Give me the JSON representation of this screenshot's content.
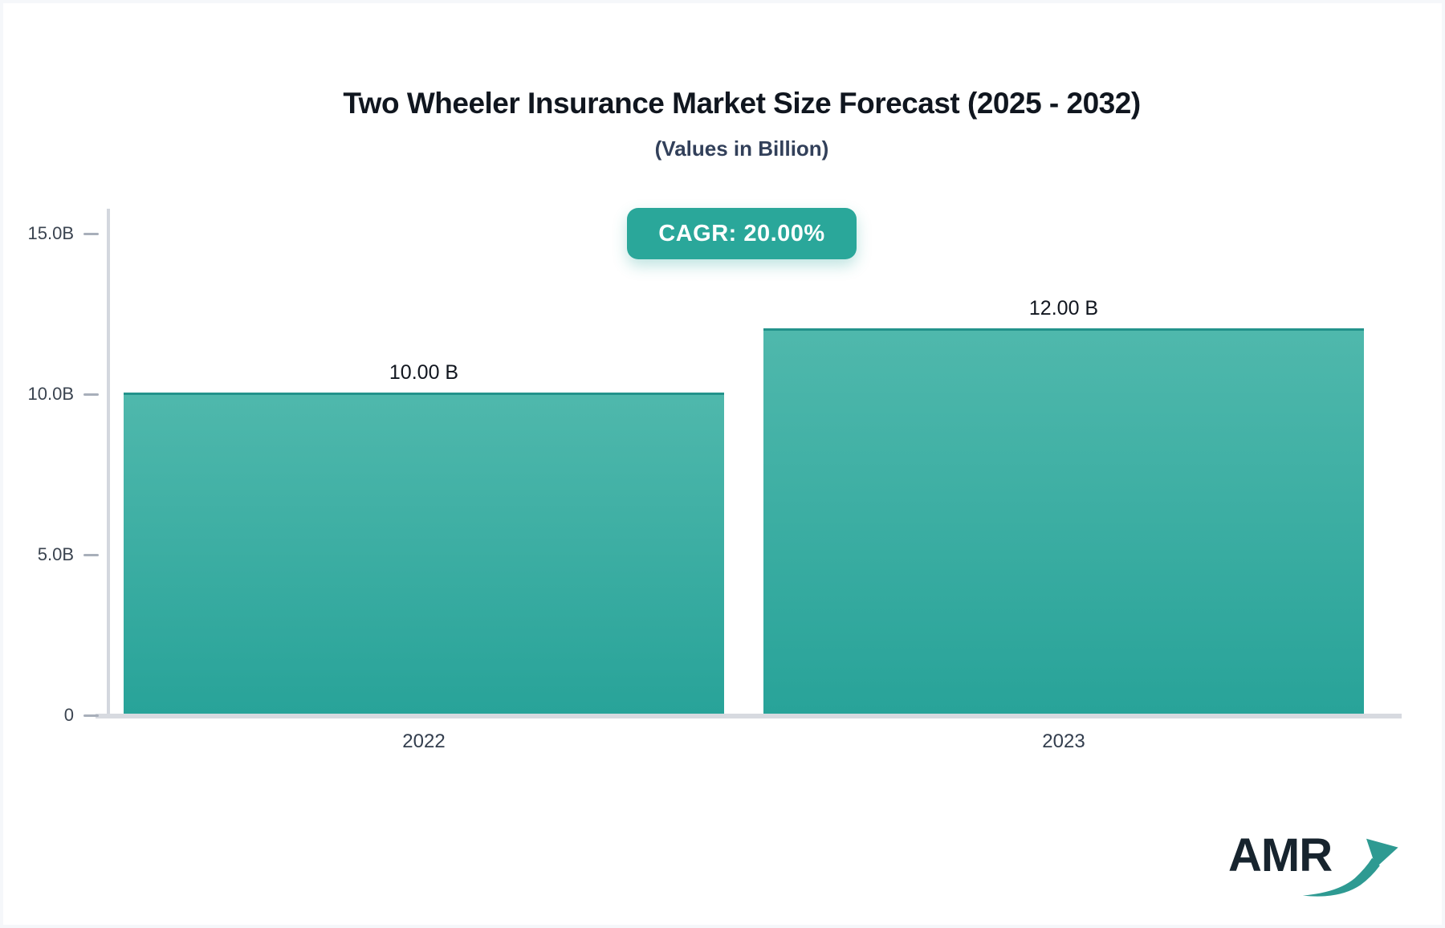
{
  "header": {
    "title": "Two Wheeler Insurance Market Size Forecast (2025 - 2032)",
    "subtitle": "(Values in Billion)",
    "cagr_label": "CAGR: 20.00%"
  },
  "chart_data": {
    "type": "bar",
    "title": "Two Wheeler Insurance Market Size Forecast (2025 - 2032)",
    "subtitle": "(Values in Billion)",
    "unit": "Billion",
    "cagr_percent": 20.0,
    "categories": [
      "2022",
      "2023"
    ],
    "values": [
      10.0,
      12.0
    ],
    "value_labels": [
      "10.00 B",
      "12.00 B"
    ],
    "y_ticks": [
      {
        "label": "15.0B",
        "value": 15
      },
      {
        "label": "10.0B",
        "value": 10
      },
      {
        "label": "5.0B",
        "value": 5
      },
      {
        "label": "0",
        "value": 0
      }
    ],
    "ylim": [
      0,
      15
    ],
    "grid": false,
    "legend": false
  },
  "colors": {
    "accent_teal": "#2aa79a",
    "bar_gradient_top": "#4fb8ac",
    "bar_gradient_bottom": "#28a399",
    "bar_top_border": "#23938b",
    "axis_line": "#d5d9e0",
    "tick_dash": "#a8afba",
    "tick_text": "#3b4450",
    "title_text": "#10161f",
    "subtitle_text": "#32405a",
    "logo_text": "#17242e",
    "logo_arrow": "#2e9a92"
  },
  "logo": {
    "text": "AMR"
  }
}
